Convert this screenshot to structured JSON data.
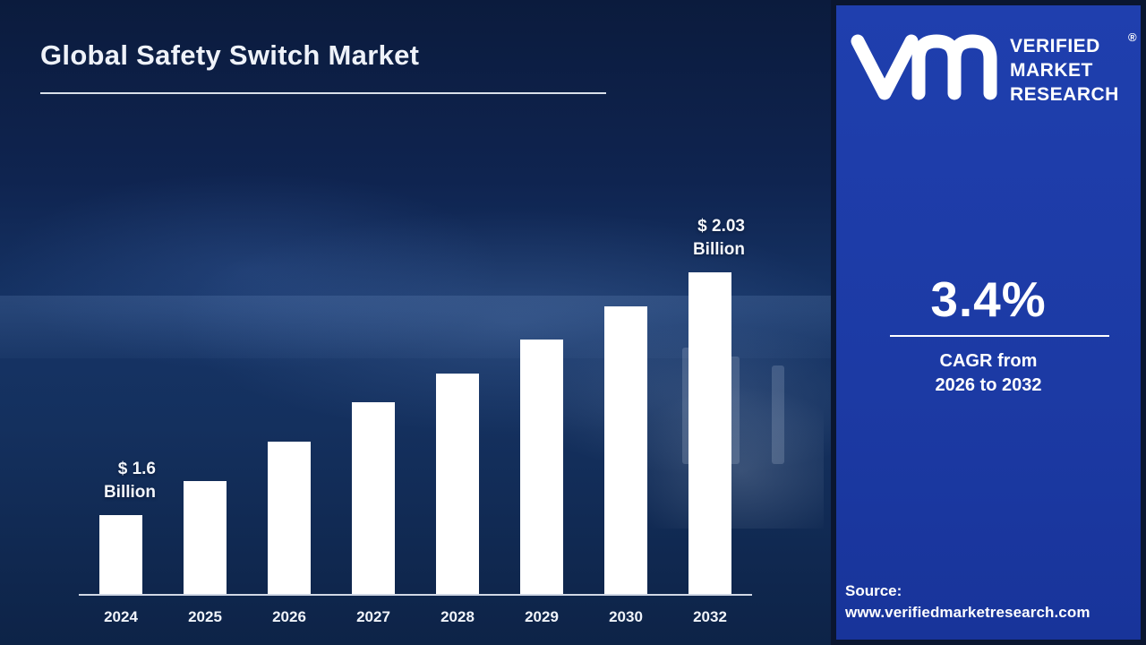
{
  "title": "Global Safety Switch Market",
  "logo": {
    "lines": {
      "l1": "VERIFIED",
      "l2": "MARKET",
      "l3": "RESEARCH"
    },
    "registered_mark": "®"
  },
  "side_panel": {
    "cagr_value": "3.4%",
    "cagr_line1": "CAGR from",
    "cagr_line2": "2026 to 2032",
    "source_label": "Source:",
    "source_url": "www.verifiedmarketresearch.com"
  },
  "colors": {
    "panel_blue": "#1e3da6",
    "bar_color": "#ffffff",
    "background_navy": "#0a1630",
    "text_white": "#ffffff"
  },
  "chart_data": {
    "type": "bar",
    "title": "Global Safety Switch Market",
    "categories": [
      "2024",
      "2025",
      "2026",
      "2027",
      "2028",
      "2029",
      "2030",
      "2032"
    ],
    "values": [
      1.6,
      1.66,
      1.73,
      1.8,
      1.85,
      1.91,
      1.97,
      2.03
    ],
    "unit": "USD Billion",
    "ylim": [
      1.46,
      2.1
    ],
    "grid": false,
    "legend": "none",
    "bar_color": "#ffffff",
    "annotations": [
      {
        "index": 0,
        "lines": [
          "$ 1.6",
          "Billion"
        ]
      },
      {
        "index": 7,
        "lines": [
          "$ 2.03",
          "Billion"
        ]
      }
    ]
  }
}
